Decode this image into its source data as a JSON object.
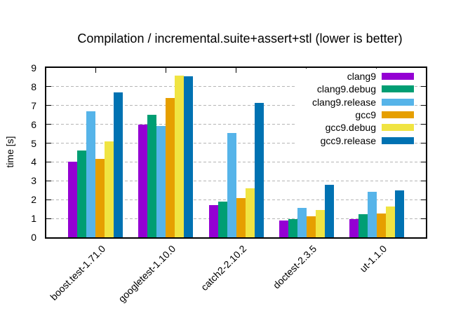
{
  "chart_data": {
    "type": "bar",
    "title": "Compilation / incremental.suite+assert+stl (lower is better)",
    "ylabel": "time [s]",
    "xlabel": "",
    "ylim": [
      0,
      9
    ],
    "ytick_step": 1,
    "ytick_labels": [
      "0",
      "1",
      "2",
      "3",
      "4",
      "5",
      "6",
      "7",
      "8",
      "9"
    ],
    "grid": true,
    "legend_position": "top-right-inside",
    "axis_color": "#000000",
    "grid_color": "#b5b5b5",
    "background_color": "#ffffff",
    "categories": [
      "boost.test-1.71.0",
      "googletest-1.10.0",
      "catch2-2.10.2",
      "doctest-2.3.5",
      "ut-1.1.0"
    ],
    "series": [
      {
        "name": "clang9",
        "color": "#9400d3",
        "values": [
          4.0,
          6.0,
          1.7,
          0.88,
          0.97
        ]
      },
      {
        "name": "clang9.debug",
        "color": "#009e73",
        "values": [
          4.6,
          6.5,
          1.9,
          0.97,
          1.22
        ]
      },
      {
        "name": "clang9.release",
        "color": "#56b4e9",
        "values": [
          6.7,
          5.9,
          5.55,
          1.57,
          2.4
        ]
      },
      {
        "name": "gcc9",
        "color": "#e69f00",
        "values": [
          4.15,
          7.4,
          2.1,
          1.12,
          1.28
        ]
      },
      {
        "name": "gcc9.debug",
        "color": "#f0e442",
        "values": [
          5.1,
          8.6,
          2.6,
          1.45,
          1.64
        ]
      },
      {
        "name": "gcc9.release",
        "color": "#0072b2",
        "values": [
          7.7,
          8.55,
          7.15,
          2.78,
          2.48
        ]
      }
    ]
  }
}
